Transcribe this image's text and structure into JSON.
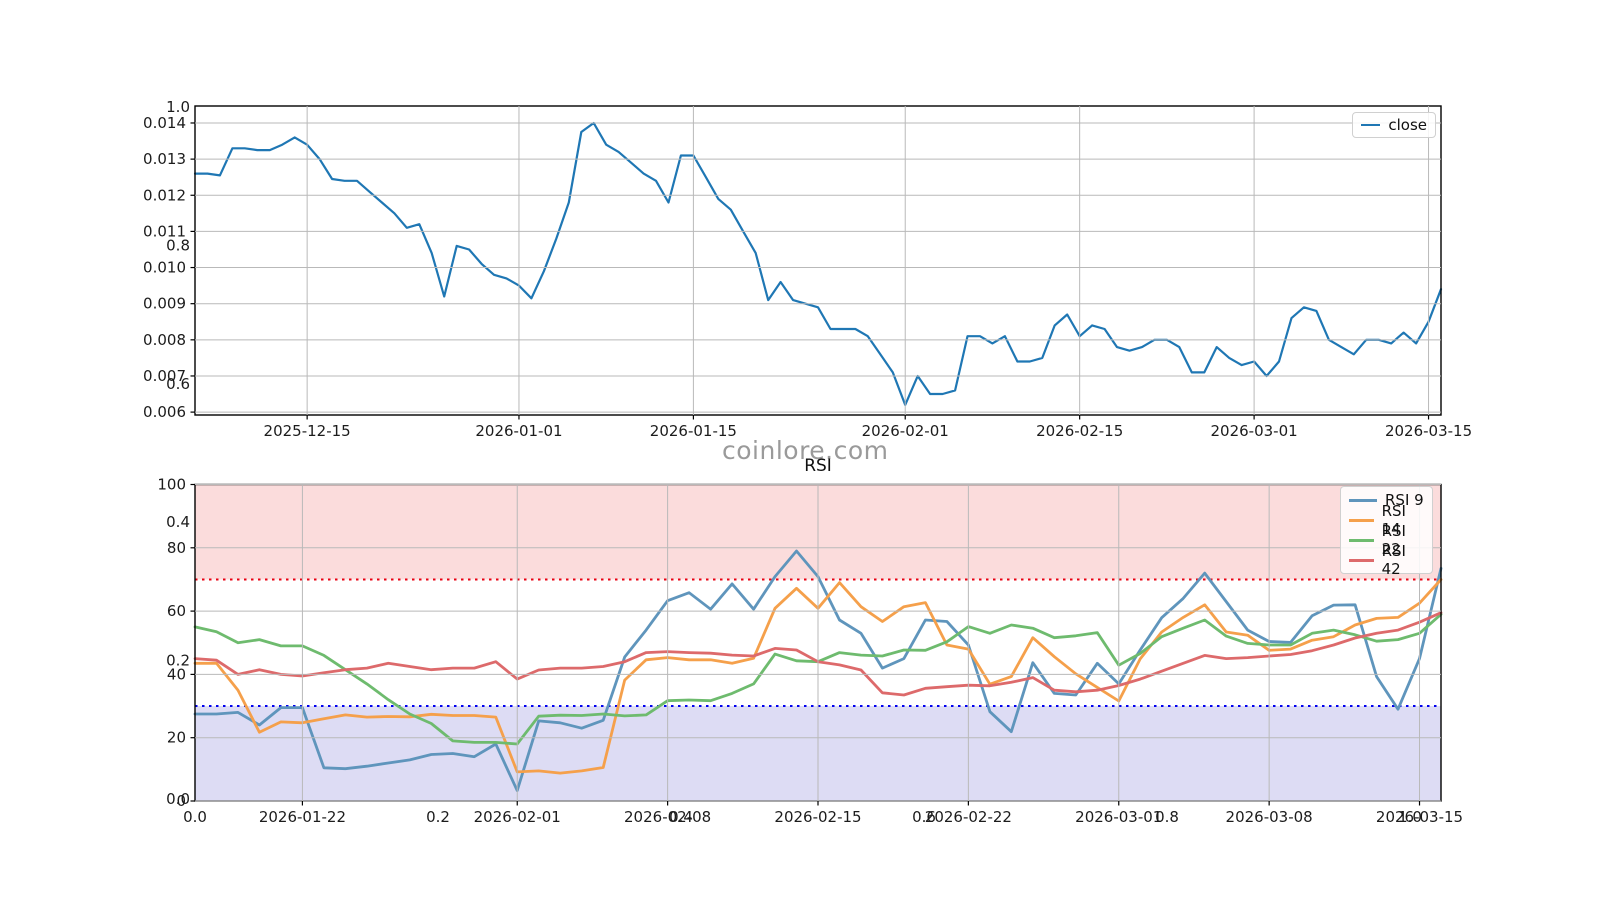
{
  "watermark": "coinlore.com",
  "price_chart": {
    "legend_label": "close",
    "y_tick_labels": [
      "0.014",
      "0.013",
      "0.012",
      "0.011",
      "0.010",
      "0.009",
      "0.008",
      "0.007",
      "0.006"
    ],
    "x_tick_labels": [
      "2025-12-15",
      "2026-01-01",
      "2026-01-15",
      "2026-02-01",
      "2026-02-15",
      "2026-03-01",
      "2026-03-15"
    ]
  },
  "rsi_chart": {
    "title": "RSI",
    "legend": [
      "RSI 9",
      "RSI 14",
      "RSI 22",
      "RSI 42"
    ],
    "y_tick_labels": [
      "0",
      "20",
      "40",
      "60",
      "80",
      "100"
    ],
    "x_tick_labels": [
      "2026-01-22",
      "2026-02-01",
      "2026-02-08",
      "2026-02-15",
      "2026-02-22",
      "2026-03-01",
      "2026-03-08",
      "2026-03-15"
    ],
    "overbought_level": 70,
    "oversold_level": 30
  },
  "overlay_axis": {
    "x_labels": [
      "0.0",
      "0.2",
      "0.4",
      "0.6",
      "0.8",
      "1.0"
    ],
    "y_labels": [
      "1.0",
      "0.8",
      "0.6",
      "0.4",
      "0.2",
      "0.0"
    ]
  },
  "colors": {
    "price_line": "#1f77b4",
    "rsi9": "#5f95bc",
    "rsi14": "#f5a04b",
    "rsi22": "#6ebb6e",
    "rsi42": "#dd6a6b",
    "overbought_dotted": "#e80011",
    "oversold_dotted": "#0000ee",
    "overbought_band": "#fbdcdc",
    "oversold_band": "#dddcf4",
    "grid": "#b9b9b9",
    "spine": "#000000",
    "tick_text": "#1c1c1c",
    "watermark": "#9a9a9a"
  },
  "chart_data": [
    {
      "type": "line",
      "title": "",
      "ylabel": "",
      "xlabel": "",
      "x_start": "2025-12-06",
      "x_interval_days": 1,
      "ylim": [
        0.00592,
        0.01447
      ],
      "grid": true,
      "legend_position": "upper right",
      "y_ticks": [
        {
          "v": 0.014,
          "label": "0.014"
        },
        {
          "v": 0.013,
          "label": "0.013"
        },
        {
          "v": 0.012,
          "label": "0.012"
        },
        {
          "v": 0.011,
          "label": "0.011"
        },
        {
          "v": 0.01,
          "label": "0.010"
        },
        {
          "v": 0.009,
          "label": "0.009"
        },
        {
          "v": 0.008,
          "label": "0.008"
        },
        {
          "v": 0.007,
          "label": "0.007"
        },
        {
          "v": 0.006,
          "label": "0.006"
        }
      ],
      "x_ticks": [
        {
          "day": 9,
          "label": "2025-12-15"
        },
        {
          "day": 26,
          "label": "2026-01-01"
        },
        {
          "day": 40,
          "label": "2026-01-15"
        },
        {
          "day": 57,
          "label": "2026-02-01"
        },
        {
          "day": 71,
          "label": "2026-02-15"
        },
        {
          "day": 85,
          "label": "2026-03-01"
        },
        {
          "day": 99,
          "label": "2026-03-15"
        }
      ],
      "series": [
        {
          "name": "close",
          "values": [
            0.0126,
            0.0126,
            0.01255,
            0.0133,
            0.0133,
            0.01325,
            0.01325,
            0.0134,
            0.0136,
            0.0134,
            0.013,
            0.01245,
            0.0124,
            0.0124,
            0.0121,
            0.0118,
            0.0115,
            0.0111,
            0.0112,
            0.0104,
            0.0092,
            0.0106,
            0.0105,
            0.0101,
            0.0098,
            0.0097,
            0.0095,
            0.00915,
            0.0099,
            0.0108,
            0.0118,
            0.01375,
            0.014,
            0.0134,
            0.0132,
            0.0129,
            0.0126,
            0.0124,
            0.0118,
            0.0131,
            0.0131,
            0.0125,
            0.0119,
            0.0116,
            0.011,
            0.0104,
            0.0091,
            0.0096,
            0.0091,
            0.009,
            0.0089,
            0.0083,
            0.0083,
            0.0083,
            0.0081,
            0.0076,
            0.0071,
            0.0062,
            0.007,
            0.0065,
            0.0065,
            0.0066,
            0.0081,
            0.0081,
            0.0079,
            0.0081,
            0.0074,
            0.0074,
            0.0075,
            0.0084,
            0.0087,
            0.0081,
            0.0084,
            0.0083,
            0.0078,
            0.0077,
            0.0078,
            0.008,
            0.008,
            0.0078,
            0.0071,
            0.0071,
            0.0078,
            0.0075,
            0.0073,
            0.0074,
            0.007,
            0.0074,
            0.0086,
            0.0089,
            0.0088,
            0.008,
            0.0078,
            0.0076,
            0.008,
            0.008,
            0.0079,
            0.0082,
            0.0079,
            0.0085,
            0.0094
          ]
        }
      ]
    },
    {
      "type": "line",
      "title": "RSI",
      "ylabel": "",
      "xlabel": "",
      "x_start": "2026-01-17",
      "x_interval_days": 1,
      "ylim": [
        0,
        100
      ],
      "grid": true,
      "legend_position": "upper right",
      "hlines": [
        {
          "v": 70,
          "style": "dotted",
          "color_key": "overbought_dotted"
        },
        {
          "v": 30,
          "style": "dotted",
          "color_key": "oversold_dotted"
        }
      ],
      "bands": [
        {
          "from": 70,
          "to": 100,
          "color_key": "overbought_band"
        },
        {
          "from": 0,
          "to": 30,
          "color_key": "oversold_band"
        }
      ],
      "y_ticks": [
        {
          "v": 0,
          "label": "0"
        },
        {
          "v": 20,
          "label": "20"
        },
        {
          "v": 40,
          "label": "40"
        },
        {
          "v": 60,
          "label": "60"
        },
        {
          "v": 80,
          "label": "80"
        },
        {
          "v": 100,
          "label": "100"
        }
      ],
      "x_ticks": [
        {
          "day": 5,
          "label": "2026-01-22"
        },
        {
          "day": 15,
          "label": "2026-02-01"
        },
        {
          "day": 22,
          "label": "2026-02-08"
        },
        {
          "day": 29,
          "label": "2026-02-15"
        },
        {
          "day": 36,
          "label": "2026-02-22"
        },
        {
          "day": 43,
          "label": "2026-03-01"
        },
        {
          "day": 50,
          "label": "2026-03-08"
        },
        {
          "day": 57,
          "label": "2026-03-15"
        }
      ],
      "series": [
        {
          "name": "RSI 9",
          "color_key": "rsi9",
          "values": [
            27.5,
            27.5,
            28,
            24,
            29.5,
            29.5,
            10.5,
            10.2,
            11,
            12,
            13,
            14.7,
            15,
            14,
            18,
            3.3,
            25.3,
            24.7,
            23,
            25.5,
            45.5,
            54,
            63.3,
            65.8,
            60.6,
            68.6,
            60.6,
            70.9,
            79,
            70.9,
            57.2,
            53,
            42,
            45,
            57.2,
            56.7,
            49.3,
            28.2,
            21.9,
            43.7,
            34,
            33.5,
            43.5,
            37,
            47.7,
            57.9,
            64,
            72,
            63,
            54,
            50.4,
            50.1,
            58.5,
            61.9,
            62,
            39.3,
            29,
            45,
            73.5
          ]
        },
        {
          "name": "RSI 14",
          "color_key": "rsi14",
          "values": [
            43.5,
            43.5,
            35,
            21.7,
            25,
            24.7,
            26,
            27.2,
            26.5,
            26.7,
            26.6,
            27.4,
            27,
            27,
            26.5,
            9.2,
            9.5,
            8.8,
            9.5,
            10.6,
            38.2,
            44.6,
            45.3,
            44.6,
            44.6,
            43.5,
            45.1,
            60.9,
            67.2,
            60.9,
            69,
            61.4,
            56.7,
            61.4,
            62.7,
            49.3,
            48,
            36.9,
            39.3,
            51.6,
            45.6,
            40.2,
            35.9,
            31.6,
            44.9,
            53.4,
            58,
            62,
            53.4,
            52.4,
            47.6,
            48,
            50.8,
            51.9,
            55.6,
            57.7,
            58,
            62.5,
            70
          ]
        },
        {
          "name": "RSI 22",
          "color_key": "rsi22",
          "values": [
            55,
            53.5,
            50,
            51,
            49,
            49,
            46,
            41.5,
            37,
            32,
            27.5,
            24.5,
            19,
            18.5,
            18.5,
            18,
            26.8,
            27.1,
            27,
            27.5,
            26.9,
            27.2,
            31.7,
            31.9,
            31.7,
            34,
            37,
            46.4,
            44.3,
            44,
            46.9,
            46.1,
            45.8,
            47.7,
            47.6,
            50.3,
            55.1,
            53,
            55.6,
            54.6,
            51.6,
            52.2,
            53.2,
            42.9,
            46.6,
            51.9,
            54.6,
            57.2,
            52.1,
            49.8,
            49.3,
            49.3,
            53,
            54,
            52.5,
            50.5,
            51,
            53,
            59
          ]
        },
        {
          "name": "RSI 42",
          "color_key": "rsi42",
          "values": [
            45,
            44.5,
            40,
            41.5,
            40,
            39.5,
            40.5,
            41.5,
            42,
            43.5,
            42.5,
            41.5,
            42,
            42,
            44,
            38.5,
            41.4,
            42,
            42,
            42.5,
            44,
            46.9,
            47.2,
            46.9,
            46.7,
            46.1,
            45.8,
            48.2,
            47.7,
            44,
            43,
            41.4,
            34.2,
            33.5,
            35.6,
            36.1,
            36.6,
            36.4,
            37.5,
            39,
            35,
            34.5,
            35,
            36.5,
            38.5,
            41,
            43.5,
            46,
            45,
            45.3,
            45.8,
            46.3,
            47.5,
            49.3,
            51.5,
            53,
            54,
            56.5,
            59.5
          ]
        }
      ]
    }
  ]
}
